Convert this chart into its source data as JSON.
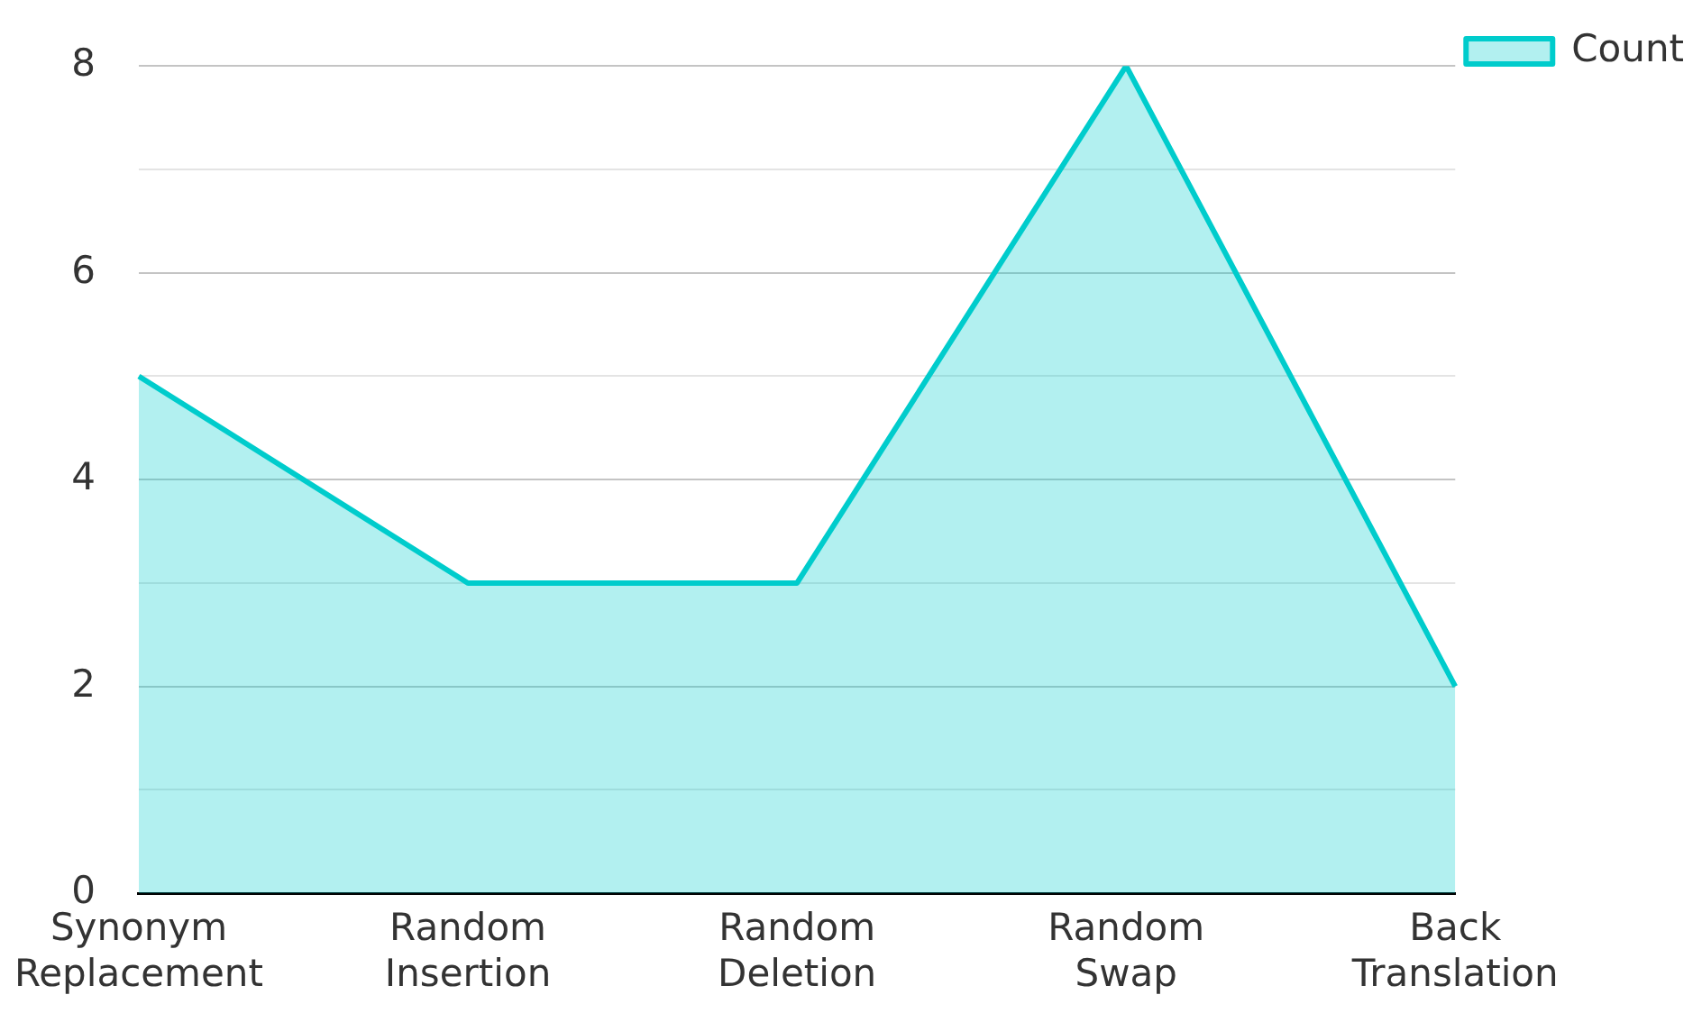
{
  "chart_data": {
    "type": "area",
    "categories": [
      "Synonym Replacement",
      "Random Insertion",
      "Random Deletion",
      "Random Swap",
      "Back Translation"
    ],
    "series": [
      {
        "name": "Count",
        "color": "#00cccc",
        "values": [
          5,
          3,
          3,
          8,
          2
        ]
      }
    ],
    "ylim": [
      0,
      8
    ],
    "yticks": [
      0,
      {
        "value": 1,
        "label": null
      },
      2,
      {
        "value": 3,
        "label": null
      },
      4,
      {
        "value": 5,
        "label": null
      },
      6,
      {
        "value": 7,
        "label": null
      },
      8
    ],
    "grid": "y",
    "legend": "top right"
  }
}
